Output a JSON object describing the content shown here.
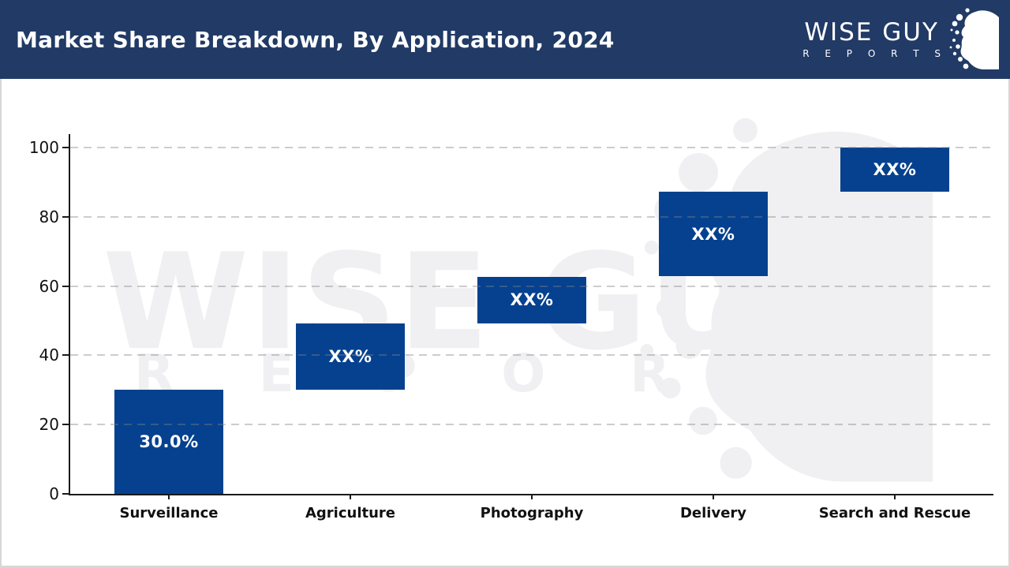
{
  "header": {
    "title": "Market Share Breakdown, By Application, 2024",
    "logo": {
      "line1": "WISE GUY",
      "line2": "R E P O R T S"
    }
  },
  "watermark": {
    "line1": "WISE GUY",
    "line2": "R E P O R T S"
  },
  "colors": {
    "header_bg": "#213a66",
    "bar": "#05418f",
    "bar_label": "#ffffff",
    "axis": "#1a1a1a",
    "grid": "rgba(130,130,130,0.4)",
    "watermark": "#f0f0f2",
    "figure_border": "#d7d7d7"
  },
  "chart_data": {
    "type": "bar",
    "subtype": "waterfall",
    "title": "Market Share Breakdown, By Application, 2024",
    "categories": [
      "Surveillance",
      "Agriculture",
      "Photography",
      "Delivery",
      "Search and Rescue"
    ],
    "segments": [
      {
        "start": 0,
        "end": 30,
        "label": "30.0%"
      },
      {
        "start": 30,
        "end": 49.3,
        "label": "XX%"
      },
      {
        "start": 49.3,
        "end": 62.7,
        "label": "XX%"
      },
      {
        "start": 62.9,
        "end": 87.2,
        "label": "XX%"
      },
      {
        "start": 87.2,
        "end": 100,
        "label": "XX%"
      }
    ],
    "yticks": [
      0,
      20,
      40,
      60,
      80,
      100
    ],
    "ylim": [
      0,
      100
    ],
    "xlabel": "",
    "ylabel": "",
    "grid": "horizontal-dashed",
    "legend": "none"
  }
}
